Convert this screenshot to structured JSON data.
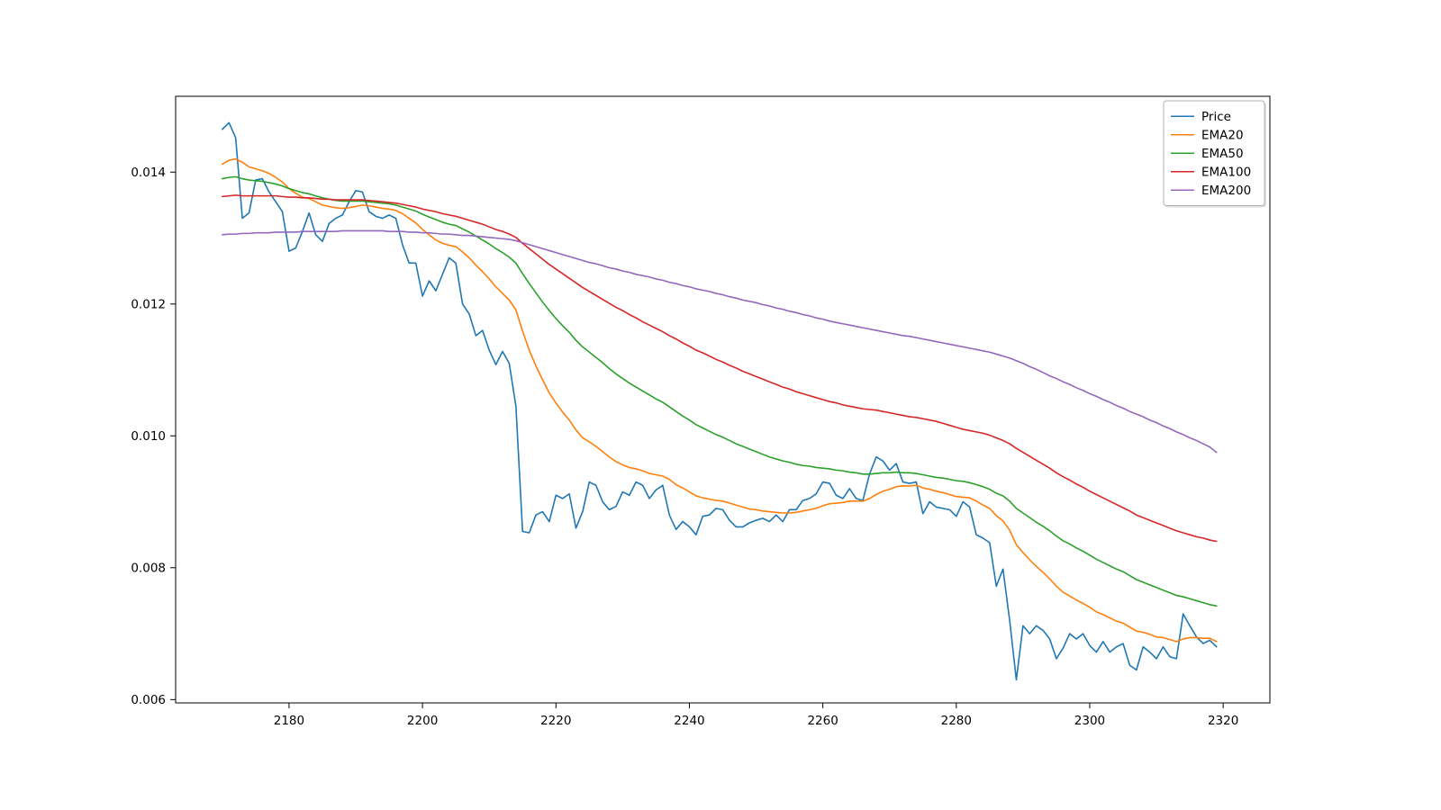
{
  "chart_data": {
    "type": "line",
    "title": "",
    "xlabel": "",
    "ylabel": "",
    "xlim": [
      2163,
      2327
    ],
    "ylim": [
      0.00595,
      0.01515
    ],
    "xticks": [
      2180,
      2200,
      2220,
      2240,
      2260,
      2280,
      2300,
      2320
    ],
    "xtick_labels": [
      "2180",
      "2200",
      "2220",
      "2240",
      "2260",
      "2280",
      "2300",
      "2320"
    ],
    "yticks": [
      0.006,
      0.008,
      0.01,
      0.012,
      0.014
    ],
    "ytick_labels": [
      "0.006",
      "0.008",
      "0.010",
      "0.012",
      "0.014"
    ],
    "legend_position": "upper right",
    "grid": false,
    "x_start": 2170,
    "x_step": 1,
    "series": [
      {
        "name": "Price",
        "color": "#1f77b4",
        "values": [
          0.01465,
          0.01475,
          0.01452,
          0.0133,
          0.01338,
          0.01388,
          0.0139,
          0.0137,
          0.01355,
          0.0134,
          0.0128,
          0.01285,
          0.0131,
          0.01338,
          0.01305,
          0.01295,
          0.01322,
          0.0133,
          0.01335,
          0.01355,
          0.01372,
          0.0137,
          0.0134,
          0.01333,
          0.0133,
          0.01335,
          0.0133,
          0.0129,
          0.01262,
          0.01262,
          0.01212,
          0.01235,
          0.0122,
          0.01245,
          0.0127,
          0.01262,
          0.012,
          0.01185,
          0.01152,
          0.0116,
          0.0113,
          0.01108,
          0.01128,
          0.0111,
          0.01045,
          0.00855,
          0.00853,
          0.0088,
          0.00885,
          0.0087,
          0.0091,
          0.00905,
          0.00912,
          0.0086,
          0.00885,
          0.0093,
          0.00925,
          0.009,
          0.00888,
          0.00893,
          0.00915,
          0.0091,
          0.0093,
          0.00925,
          0.00905,
          0.00918,
          0.00925,
          0.0088,
          0.00858,
          0.0087,
          0.00862,
          0.0085,
          0.00878,
          0.0088,
          0.0089,
          0.00888,
          0.00872,
          0.00862,
          0.00862,
          0.00868,
          0.00872,
          0.00875,
          0.0087,
          0.0088,
          0.0087,
          0.00888,
          0.00888,
          0.00902,
          0.00905,
          0.00912,
          0.0093,
          0.00928,
          0.0091,
          0.00905,
          0.0092,
          0.00905,
          0.00902,
          0.00942,
          0.00968,
          0.00962,
          0.00948,
          0.00958,
          0.0093,
          0.00928,
          0.0093,
          0.00882,
          0.009,
          0.00892,
          0.0089,
          0.00888,
          0.00878,
          0.009,
          0.00892,
          0.0085,
          0.00845,
          0.00838,
          0.00772,
          0.00798,
          0.0072,
          0.0063,
          0.00712,
          0.007,
          0.00712,
          0.00705,
          0.00692,
          0.00662,
          0.00678,
          0.007,
          0.00692,
          0.007,
          0.00682,
          0.00672,
          0.00688,
          0.00672,
          0.0068,
          0.00685,
          0.00652,
          0.00645,
          0.0068,
          0.00672,
          0.00662,
          0.0068,
          0.00665,
          0.00662,
          0.0073,
          0.00712,
          0.00695,
          0.00685,
          0.0069,
          0.0068
        ]
      },
      {
        "name": "EMA20",
        "color": "#ff7f0e",
        "values": [
          0.01412,
          0.01418,
          0.0142,
          0.01415,
          0.01408,
          0.01405,
          0.01402,
          0.01398,
          0.01392,
          0.01385,
          0.01375,
          0.01368,
          0.01362,
          0.0136,
          0.01355,
          0.0135,
          0.01348,
          0.01346,
          0.01345,
          0.01346,
          0.01348,
          0.0135,
          0.01349,
          0.01347,
          0.01345,
          0.01344,
          0.01342,
          0.01337,
          0.0133,
          0.01323,
          0.01313,
          0.01305,
          0.01297,
          0.01292,
          0.01289,
          0.01287,
          0.01279,
          0.0127,
          0.01259,
          0.01249,
          0.01238,
          0.01226,
          0.01216,
          0.01206,
          0.01191,
          0.01159,
          0.0113,
          0.01106,
          0.01085,
          0.01065,
          0.0105,
          0.01036,
          0.01024,
          0.01009,
          0.00997,
          0.00991,
          0.00984,
          0.00976,
          0.00968,
          0.00961,
          0.00956,
          0.00952,
          0.0095,
          0.00947,
          0.00943,
          0.00941,
          0.00939,
          0.00934,
          0.00926,
          0.00921,
          0.00915,
          0.00909,
          0.00906,
          0.00904,
          0.00902,
          0.00901,
          0.00898,
          0.00895,
          0.00892,
          0.00889,
          0.00888,
          0.00886,
          0.00885,
          0.00884,
          0.00883,
          0.00883,
          0.00884,
          0.00886,
          0.00888,
          0.0089,
          0.00894,
          0.00897,
          0.00898,
          0.00899,
          0.00901,
          0.00901,
          0.00901,
          0.00905,
          0.00911,
          0.00916,
          0.00919,
          0.00923,
          0.00924,
          0.00924,
          0.00925,
          0.00921,
          0.00919,
          0.00916,
          0.00914,
          0.00911,
          0.00908,
          0.00907,
          0.00906,
          0.00901,
          0.00895,
          0.0089,
          0.00879,
          0.00871,
          0.00857,
          0.00835,
          0.00823,
          0.00812,
          0.00802,
          0.00793,
          0.00783,
          0.00772,
          0.00763,
          0.00757,
          0.00751,
          0.00746,
          0.0074,
          0.00733,
          0.00729,
          0.00724,
          0.00719,
          0.00716,
          0.0071,
          0.00704,
          0.00702,
          0.00699,
          0.00695,
          0.00694,
          0.00691,
          0.00688,
          0.00692,
          0.00694,
          0.00694,
          0.00693,
          0.00693,
          0.00688
        ]
      },
      {
        "name": "EMA50",
        "color": "#2ca02c",
        "values": [
          0.0139,
          0.01392,
          0.01393,
          0.0139,
          0.01388,
          0.01387,
          0.01386,
          0.01384,
          0.01382,
          0.01379,
          0.01375,
          0.01372,
          0.01369,
          0.01367,
          0.01364,
          0.01361,
          0.01359,
          0.01357,
          0.01356,
          0.01356,
          0.01356,
          0.01356,
          0.01355,
          0.01354,
          0.01353,
          0.01352,
          0.0135,
          0.01347,
          0.01344,
          0.01341,
          0.01336,
          0.01332,
          0.01328,
          0.01324,
          0.01321,
          0.01319,
          0.01314,
          0.01309,
          0.01303,
          0.01297,
          0.01291,
          0.01284,
          0.01278,
          0.01271,
          0.01262,
          0.01246,
          0.01231,
          0.01217,
          0.01203,
          0.0119,
          0.01178,
          0.01167,
          0.01157,
          0.01145,
          0.01135,
          0.01127,
          0.01119,
          0.01111,
          0.01102,
          0.01094,
          0.01087,
          0.0108,
          0.01074,
          0.01068,
          0.01062,
          0.01056,
          0.01051,
          0.01044,
          0.01037,
          0.0103,
          0.01024,
          0.01017,
          0.01012,
          0.01007,
          0.01002,
          0.00998,
          0.00993,
          0.00988,
          0.00984,
          0.0098,
          0.00976,
          0.00972,
          0.00968,
          0.00965,
          0.00962,
          0.0096,
          0.00957,
          0.00955,
          0.00954,
          0.00952,
          0.00951,
          0.0095,
          0.00948,
          0.00947,
          0.00945,
          0.00944,
          0.00942,
          0.00942,
          0.00943,
          0.00944,
          0.00944,
          0.00945,
          0.00944,
          0.00944,
          0.00943,
          0.00941,
          0.00939,
          0.00937,
          0.00936,
          0.00934,
          0.00932,
          0.00931,
          0.00929,
          0.00926,
          0.00923,
          0.00919,
          0.00913,
          0.00909,
          0.00901,
          0.0089,
          0.00883,
          0.00876,
          0.00869,
          0.00863,
          0.00856,
          0.00848,
          0.00841,
          0.00836,
          0.0083,
          0.00825,
          0.00819,
          0.00813,
          0.00808,
          0.00803,
          0.00798,
          0.00794,
          0.00788,
          0.00782,
          0.00778,
          0.00774,
          0.0077,
          0.00766,
          0.00762,
          0.00758,
          0.00756,
          0.00753,
          0.0075,
          0.00747,
          0.00744,
          0.00742
        ]
      },
      {
        "name": "EMA100",
        "color": "#d62728",
        "values": [
          0.01363,
          0.01364,
          0.01365,
          0.01364,
          0.01364,
          0.01364,
          0.01364,
          0.01364,
          0.01364,
          0.01363,
          0.01362,
          0.01362,
          0.01361,
          0.01361,
          0.0136,
          0.01359,
          0.01359,
          0.01358,
          0.01358,
          0.01358,
          0.01358,
          0.01358,
          0.01357,
          0.01356,
          0.01355,
          0.01354,
          0.01353,
          0.01351,
          0.01349,
          0.01347,
          0.01344,
          0.01342,
          0.0134,
          0.01337,
          0.01335,
          0.01333,
          0.0133,
          0.01327,
          0.01324,
          0.01321,
          0.01317,
          0.01313,
          0.0131,
          0.01306,
          0.01301,
          0.01292,
          0.01284,
          0.01276,
          0.01268,
          0.0126,
          0.01253,
          0.01246,
          0.01239,
          0.01232,
          0.01225,
          0.01219,
          0.01213,
          0.01207,
          0.01201,
          0.01195,
          0.0119,
          0.01184,
          0.01179,
          0.01173,
          0.01168,
          0.01163,
          0.01158,
          0.01152,
          0.01147,
          0.01141,
          0.01136,
          0.0113,
          0.01126,
          0.01121,
          0.01116,
          0.01112,
          0.01107,
          0.01103,
          0.01098,
          0.01094,
          0.0109,
          0.01086,
          0.01082,
          0.01078,
          0.01074,
          0.01071,
          0.01067,
          0.01064,
          0.01061,
          0.01058,
          0.01055,
          0.01052,
          0.0105,
          0.01047,
          0.01045,
          0.01043,
          0.01041,
          0.0104,
          0.01039,
          0.01037,
          0.01035,
          0.01033,
          0.01031,
          0.01029,
          0.01028,
          0.01026,
          0.01024,
          0.01022,
          0.01019,
          0.01016,
          0.01013,
          0.0101,
          0.01008,
          0.01006,
          0.01004,
          0.01001,
          0.00997,
          0.00993,
          0.00988,
          0.00981,
          0.00975,
          0.00969,
          0.00963,
          0.00957,
          0.00951,
          0.00944,
          0.00938,
          0.00933,
          0.00927,
          0.00922,
          0.00916,
          0.00911,
          0.00906,
          0.00901,
          0.00896,
          0.00891,
          0.00886,
          0.0088,
          0.00876,
          0.00872,
          0.00868,
          0.00864,
          0.0086,
          0.00856,
          0.00853,
          0.0085,
          0.00847,
          0.00845,
          0.00842,
          0.0084
        ]
      },
      {
        "name": "EMA200",
        "color": "#9467bd",
        "values": [
          0.01305,
          0.01306,
          0.01306,
          0.01307,
          0.01307,
          0.01308,
          0.01308,
          0.01308,
          0.01309,
          0.01309,
          0.01309,
          0.01309,
          0.0131,
          0.0131,
          0.0131,
          0.0131,
          0.0131,
          0.0131,
          0.01311,
          0.01311,
          0.01311,
          0.01311,
          0.01311,
          0.01311,
          0.01311,
          0.0131,
          0.0131,
          0.0131,
          0.01309,
          0.01309,
          0.01308,
          0.01308,
          0.01307,
          0.01306,
          0.01306,
          0.01305,
          0.01304,
          0.01304,
          0.01303,
          0.01302,
          0.01301,
          0.013,
          0.01299,
          0.01298,
          0.01296,
          0.01293,
          0.0129,
          0.01287,
          0.01284,
          0.01281,
          0.01278,
          0.01275,
          0.01272,
          0.01269,
          0.01266,
          0.01263,
          0.01261,
          0.01258,
          0.01255,
          0.01253,
          0.0125,
          0.01248,
          0.01245,
          0.01243,
          0.01241,
          0.01238,
          0.01236,
          0.01233,
          0.01231,
          0.01228,
          0.01226,
          0.01223,
          0.01221,
          0.01219,
          0.01216,
          0.01214,
          0.01211,
          0.01209,
          0.01206,
          0.01204,
          0.01202,
          0.01199,
          0.01197,
          0.01194,
          0.01192,
          0.01189,
          0.01187,
          0.01184,
          0.01182,
          0.01179,
          0.01177,
          0.01174,
          0.01172,
          0.0117,
          0.01168,
          0.01166,
          0.01164,
          0.01162,
          0.0116,
          0.01158,
          0.01156,
          0.01154,
          0.01152,
          0.01151,
          0.01149,
          0.01147,
          0.01145,
          0.01143,
          0.01141,
          0.01139,
          0.01137,
          0.01135,
          0.01133,
          0.01131,
          0.01129,
          0.01127,
          0.01124,
          0.01121,
          0.01118,
          0.01114,
          0.0111,
          0.01105,
          0.01101,
          0.01096,
          0.01091,
          0.01087,
          0.01082,
          0.01078,
          0.01073,
          0.01069,
          0.01064,
          0.0106,
          0.01055,
          0.01051,
          0.01046,
          0.01042,
          0.01037,
          0.01033,
          0.01029,
          0.01024,
          0.0102,
          0.01015,
          0.01011,
          0.01006,
          0.01002,
          0.00997,
          0.00993,
          0.00988,
          0.00983,
          0.00975
        ]
      }
    ]
  }
}
